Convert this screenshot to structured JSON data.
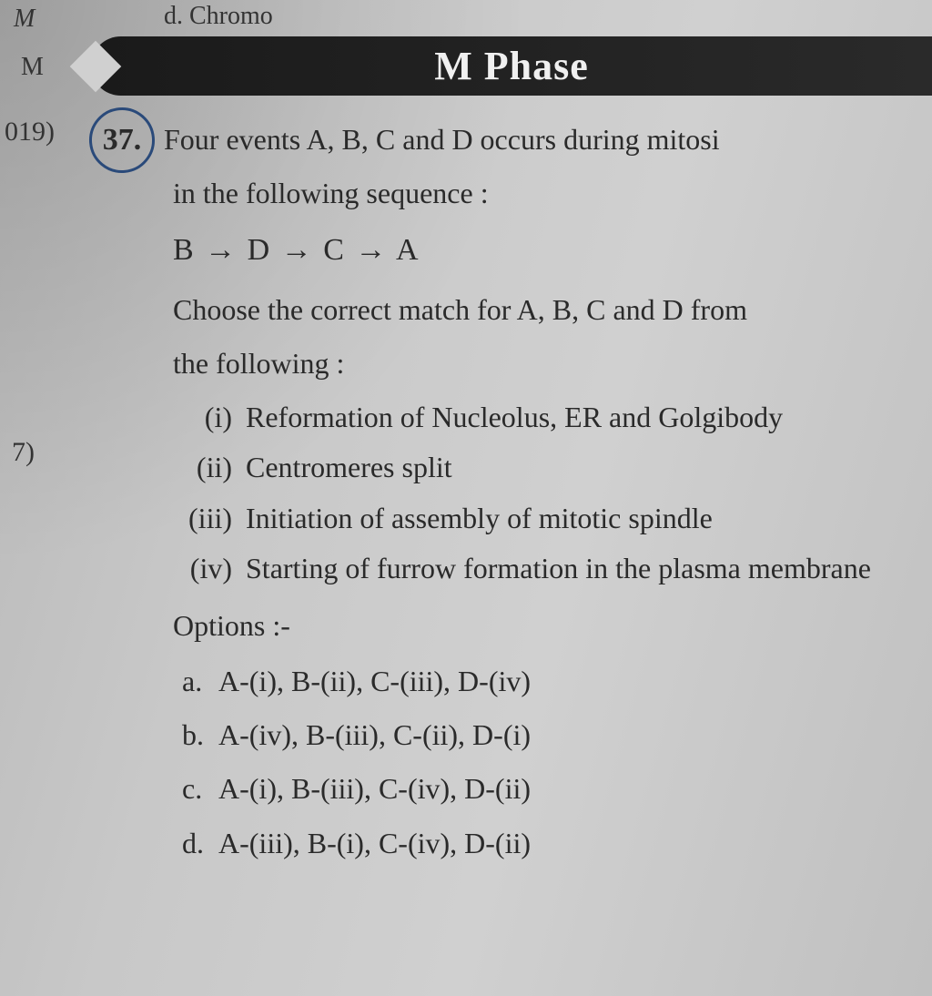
{
  "margin": {
    "m1": "M",
    "m2": "M",
    "ref019": "019)",
    "ref7": "7)"
  },
  "partial_top": "d. Chromo",
  "header": {
    "title": "M Phase"
  },
  "question": {
    "number": "37.",
    "line1": "Four events A, B, C and D occurs during mitosi",
    "line2": "in the following sequence :",
    "sequence": "B → D → C → A",
    "line3": "Choose the correct match for A, B, C and D from",
    "line4": "the following :"
  },
  "items": [
    {
      "num": "(i)",
      "text": "Reformation of Nucleolus, ER and Golgibody"
    },
    {
      "num": "(ii)",
      "text": "Centromeres split"
    },
    {
      "num": "(iii)",
      "text": "Initiation of assembly of mitotic spindle"
    },
    {
      "num": "(iv)",
      "text": "Starting of furrow formation in the plasma membrane"
    }
  ],
  "options_label": "Options :-",
  "options": [
    {
      "letter": "a.",
      "text": "A-(i), B-(ii), C-(iii), D-(iv)"
    },
    {
      "letter": "b.",
      "text": "A-(iv), B-(iii), C-(ii), D-(i)"
    },
    {
      "letter": "c.",
      "text": "A-(i), B-(iii), C-(iv), D-(ii)"
    },
    {
      "letter": "d.",
      "text": "A-(iii), B-(i), C-(iv), D-(ii)"
    }
  ],
  "colors": {
    "background": "#c8c8c8",
    "text": "#2a2a2a",
    "banner_bg": "#1a1a1a",
    "banner_text": "#f0f0f0",
    "circle": "#2a4a7a"
  }
}
